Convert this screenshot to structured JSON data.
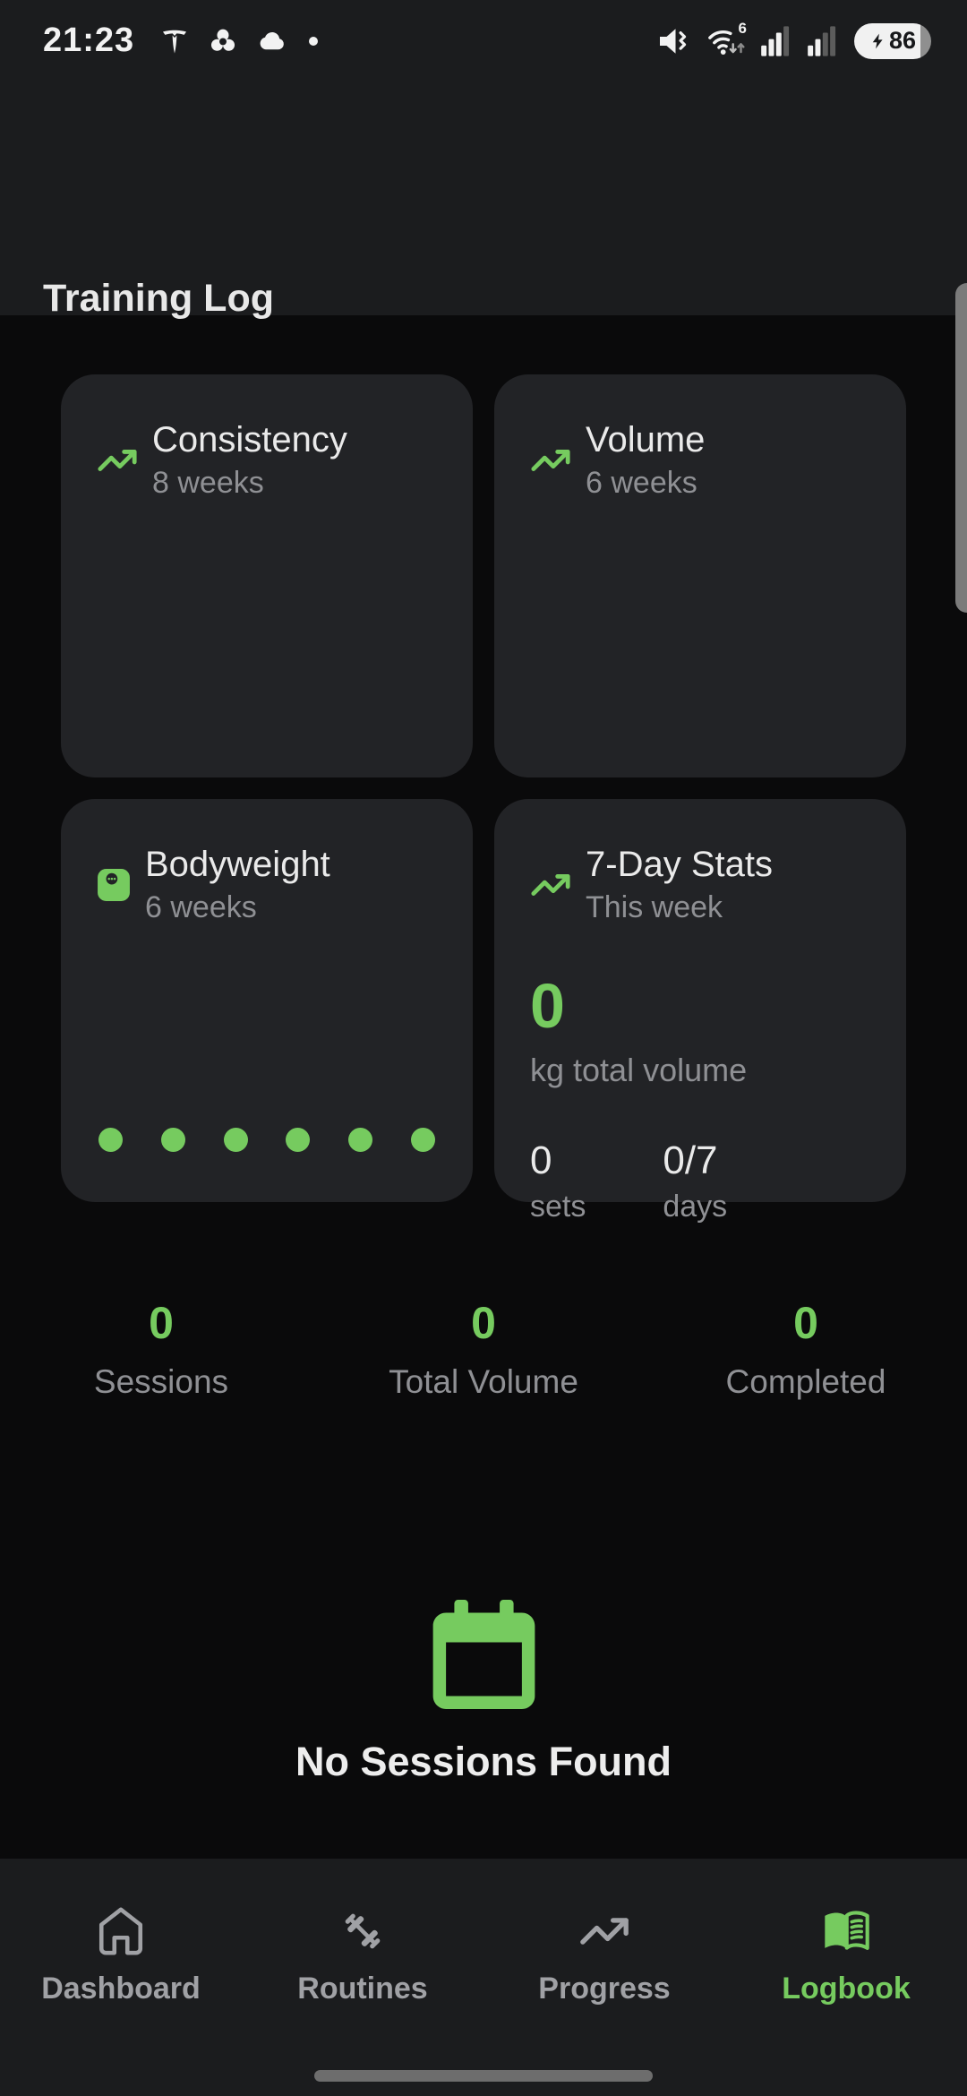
{
  "colors": {
    "accent_green": "#76cb5f"
  },
  "status_bar": {
    "time": "21:23",
    "notification_icons": [
      "tesla-icon",
      "fan-icon",
      "cloud-icon",
      "dot-icon"
    ],
    "right_icons": [
      "mute-vibrate-icon",
      "wifi-icon",
      "signal-bars-icon",
      "signal-bars-icon",
      "battery-icon"
    ],
    "wifi_label": "6",
    "battery_percent": "86"
  },
  "header": {
    "title": "Training Log"
  },
  "cards": {
    "consistency": {
      "icon": "trending-up-icon",
      "title": "Consistency",
      "subtitle": "8 weeks"
    },
    "volume": {
      "icon": "trending-up-icon",
      "title": "Volume",
      "subtitle": "6 weeks"
    },
    "bodyweight": {
      "icon": "scale-icon",
      "title": "Bodyweight",
      "subtitle": "6 weeks",
      "dot_count": 6
    },
    "seven_day": {
      "icon": "trending-up-icon",
      "title": "7-Day Stats",
      "subtitle": "This week",
      "volume_value": "0",
      "volume_label": "kg total volume",
      "sets_value": "0",
      "sets_label": "sets",
      "days_value": "0/7",
      "days_label": "days"
    }
  },
  "summary_stats": [
    {
      "value": "0",
      "label": "Sessions"
    },
    {
      "value": "0",
      "label": "Total Volume"
    },
    {
      "value": "0",
      "label": "Completed"
    }
  ],
  "empty_state": {
    "icon": "calendar-icon",
    "title": "No Sessions Found"
  },
  "nav": {
    "items": [
      {
        "label": "Dashboard",
        "icon": "home-icon",
        "active": false
      },
      {
        "label": "Routines",
        "icon": "dumbbell-icon",
        "active": false
      },
      {
        "label": "Progress",
        "icon": "trending-up-icon",
        "active": false
      },
      {
        "label": "Logbook",
        "icon": "book-icon",
        "active": true
      }
    ]
  }
}
